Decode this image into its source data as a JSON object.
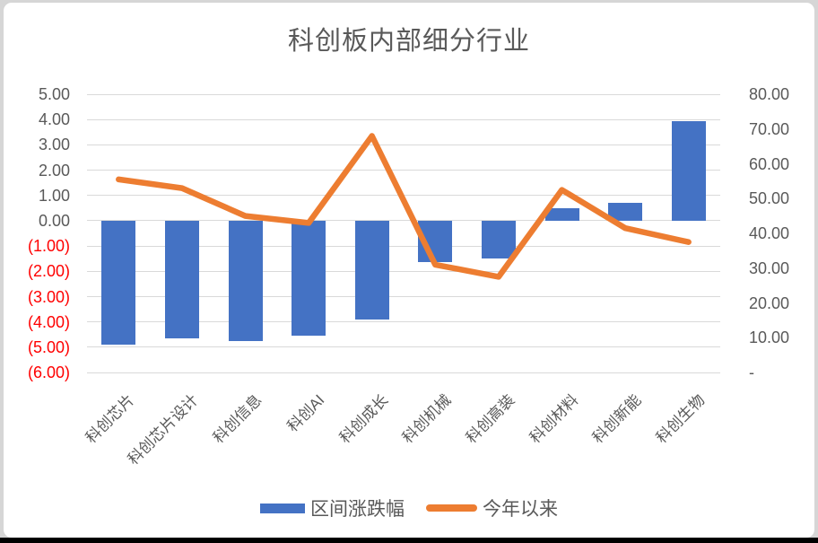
{
  "window": {
    "card_color": "#ffffff",
    "frame_color": "#d6d6d6",
    "bottom_bar_color": "#000000"
  },
  "text_colors": {
    "title": "#595959",
    "axis": "#595959",
    "negative_tick": "#ff0000",
    "x_labels": "#595959",
    "legend": "#595959",
    "gridline": "#d9d9d9"
  },
  "chart_data": {
    "type": "bar+line combo, dual axis",
    "title": "科创板内部细分行业",
    "categories": [
      "科创芯片",
      "科创芯片设计",
      "科创信息",
      "科创AI",
      "科创成长",
      "科创机械",
      "科创高装",
      "科创材料",
      "科创新能",
      "科创生物"
    ],
    "series": [
      {
        "name": "区间涨跌幅",
        "type": "bar",
        "axis": "left",
        "color": "#4472c4",
        "values": [
          -4.9,
          -4.65,
          -4.75,
          -4.55,
          -3.9,
          -1.65,
          -1.5,
          0.5,
          0.7,
          3.95
        ]
      },
      {
        "name": "今年以来",
        "type": "line",
        "axis": "right",
        "color": "#ed7d31",
        "values": [
          55.5,
          53.0,
          45.0,
          43.0,
          68.0,
          31.0,
          27.5,
          52.5,
          41.5,
          37.5
        ]
      }
    ],
    "left_axis": {
      "min": -6,
      "max": 5,
      "step": 1,
      "tick_labels": [
        "5.00",
        "4.00",
        "3.00",
        "2.00",
        "1.00",
        "0.00",
        "(1.00)",
        "(2.00)",
        "(3.00)",
        "(4.00)",
        "(5.00)",
        "(6.00)"
      ],
      "tick_values": [
        5,
        4,
        3,
        2,
        1,
        0,
        -1,
        -2,
        -3,
        -4,
        -5,
        -6
      ]
    },
    "right_axis": {
      "min": 0,
      "max": 80,
      "step": 10,
      "tick_labels": [
        "80.00",
        "70.00",
        "60.00",
        "50.00",
        "40.00",
        "30.00",
        "20.00",
        "10.00",
        "-"
      ]
    },
    "grid": true,
    "legend_position": "bottom"
  }
}
